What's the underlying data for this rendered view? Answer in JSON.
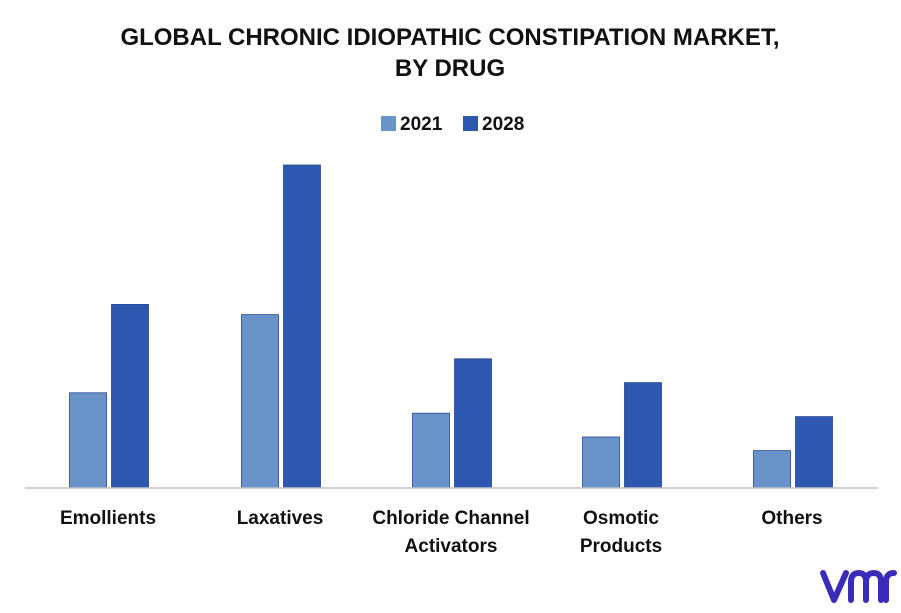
{
  "chart_data": {
    "type": "bar",
    "title": [
      "GLOBAL CHRONIC IDIOPATHIC CONSTIPATION MARKET,",
      "BY DRUG"
    ],
    "categories": [
      [
        "Emollients"
      ],
      [
        "Laxatives"
      ],
      [
        "Chloride Channel",
        "Activators"
      ],
      [
        "Osmotic",
        "Products"
      ],
      [
        "Others"
      ]
    ],
    "series": [
      {
        "name": "2021",
        "color": "#6a93c9",
        "values": [
          28,
          51,
          22,
          15,
          11
        ]
      },
      {
        "name": "2028",
        "color": "#2e57b0",
        "values": [
          54,
          95,
          38,
          31,
          21
        ]
      }
    ],
    "ylim": [
      0,
      100
    ],
    "legend_position": "top-center",
    "grid": false,
    "xlabel": "",
    "ylabel": ""
  },
  "brand": {
    "logo_name": "vmr-logo",
    "logo_color": "#3a2bb8",
    "logo_text": "vmr"
  }
}
